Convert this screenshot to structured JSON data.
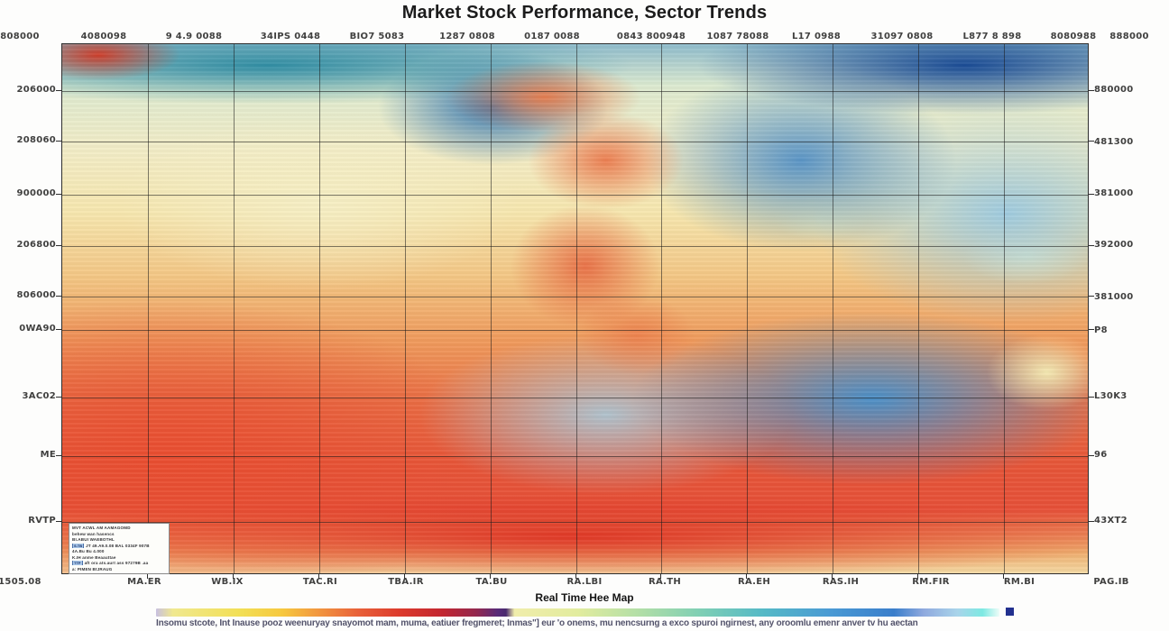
{
  "chart_data": {
    "type": "heatmap",
    "title": "Market Stock Performance, Sector Trends",
    "subtitle": "Real Time Hee Map",
    "description": "World-map style heat map: warm colors (yellow/orange/red) over the Americas, Europe, Africa and a red band across the far south; cool colors (teal/blue) over the Arctic, North Atlantic, Asia and the Indian/Pacific oceans; pale yellow patches over India, Southeast Asia and Australia.",
    "grid": true,
    "legend_position": "bottom-left",
    "colorbar_position": "bottom",
    "top_axis": [
      "808000",
      "4080098",
      "9 4.9 0088",
      "34IPS 0448",
      "BIO7 5083",
      "1287 0808",
      "0187 0088",
      "0843 800948",
      "1087 78088",
      "L17 0988",
      "31097 0808",
      "L877 8 898",
      "8080988",
      "888000"
    ],
    "left_axis": [
      "206000",
      "208060",
      "900000",
      "206800",
      "806000",
      "0WA90",
      "3AC02",
      "ME",
      "RVTP"
    ],
    "right_axis": [
      "880000",
      "481300",
      "381000",
      "392000",
      "381000",
      "P8",
      "L30K3",
      "96",
      "43XT2"
    ],
    "bottom_axis": [
      "1505.08",
      "MA.ER",
      "WB.IX",
      "TAC.RI",
      "TBA.IR",
      "TA.BU",
      "RA.LBI",
      "RA.TH",
      "RA.EH",
      "RAS.IH",
      "RM.FIR",
      "RM.BI",
      "PAG.IB"
    ],
    "legend_lines": [
      {
        "chip": "",
        "text": "MVT ACWL AM AAMAGOMD"
      },
      {
        "chip": "",
        "text": "behew wan hasencs"
      },
      {
        "chip": "",
        "text": "BI.ABUI  WAEBOTHL"
      },
      {
        "chip": "S.TB",
        "text": "JT 49.A9.0.08 BAL 0334F 907B"
      },
      {
        "chip": "",
        "text": "4A.Bu Bu   4.000"
      },
      {
        "chip": "",
        "text": "K.IH anme Beaauttae"
      },
      {
        "chip": "TTP",
        "text": "aft ora ats.aurt ass 97279B .aa"
      },
      {
        "chip": "",
        "text": "a: PIMEN   BtJRAUG"
      }
    ],
    "colorbar_caption": "Insomu stcote, Int Inause pooz weenuryay snayomot mam, muma, eatiuer fregmeret; Inmas\"] eur 'o onems, mu nencsurng a exco spuroi ngirnest, any oroomlu emenr anver tv hu aectan",
    "colorbar_stops": [
      {
        "c": "#c8c0e0",
        "p": 0
      },
      {
        "c": "#f0e88f",
        "p": 2
      },
      {
        "c": "#f2df55",
        "p": 10
      },
      {
        "c": "#f6c83e",
        "p": 15
      },
      {
        "c": "#f2993f",
        "p": 19
      },
      {
        "c": "#e86038",
        "p": 24
      },
      {
        "c": "#dc3a2c",
        "p": 29
      },
      {
        "c": "#c22630",
        "p": 34
      },
      {
        "c": "#93284e",
        "p": 38
      },
      {
        "c": "#582a78",
        "p": 40.5
      },
      {
        "c": "#4a2a6e",
        "p": 41.5
      },
      {
        "c": "#f0edab",
        "p": 42.5
      },
      {
        "c": "#e2ec9e",
        "p": 50
      },
      {
        "c": "#b4dfa6",
        "p": 57
      },
      {
        "c": "#7fcfb4",
        "p": 64.5
      },
      {
        "c": "#55b9c6",
        "p": 72
      },
      {
        "c": "#4a9ad4",
        "p": 80
      },
      {
        "c": "#3a7ecb",
        "p": 87.5
      },
      {
        "c": "#8fa9de",
        "p": 91
      },
      {
        "c": "#a9d4ea",
        "p": 95
      },
      {
        "c": "#7de9e2",
        "p": 98
      },
      {
        "c": "#eefcf8",
        "p": 100
      }
    ],
    "colors": {
      "warm_peak": "#e2492f",
      "cool_peak": "#1b4894",
      "colorbar_end_marker": "#22308f"
    }
  }
}
